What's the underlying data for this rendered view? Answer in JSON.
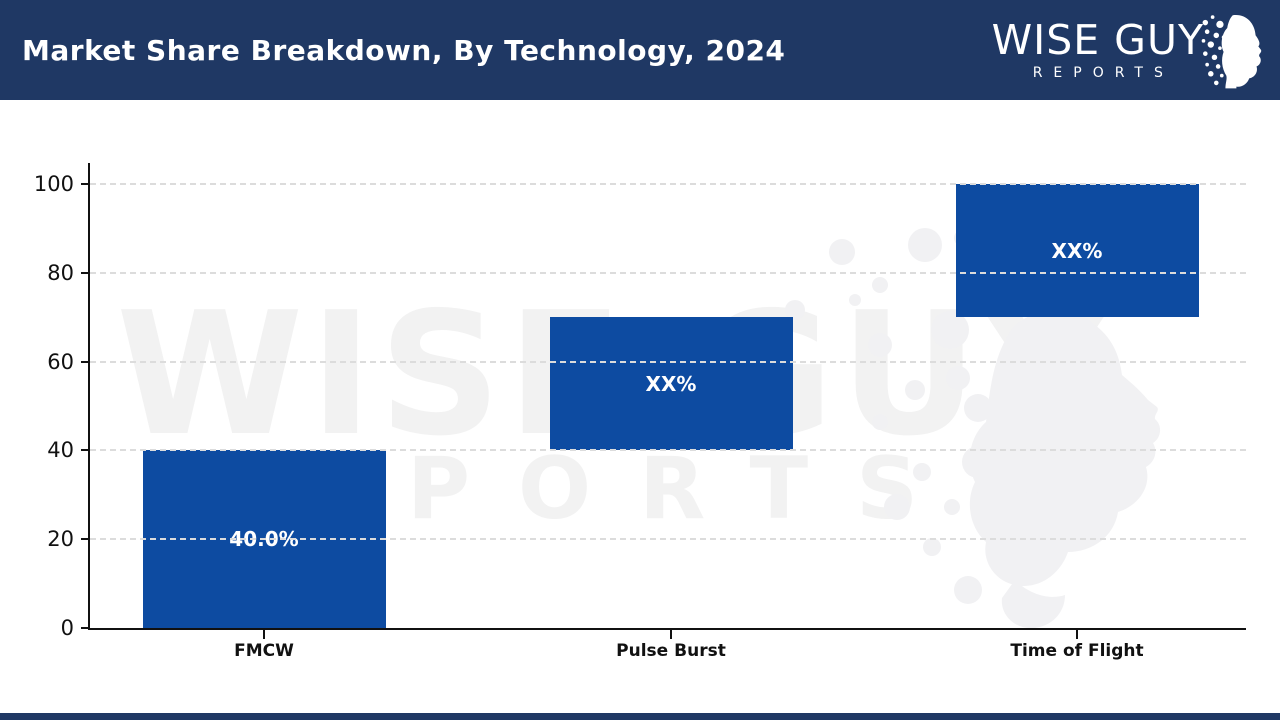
{
  "header": {
    "title": "Market Share Breakdown, By Technology, 2024",
    "logo": {
      "line1": "WISE GUY",
      "line2": "REPORTS"
    }
  },
  "watermark": {
    "line1": "WISE GUY",
    "line2": "REPORTS"
  },
  "colors": {
    "header_bg": "#1F3864",
    "footer_bg": "#1F3864",
    "bar": "#0D4BA1",
    "bar_label": "#FFFFFF",
    "grid": "#DCDCDC",
    "axis": "#111111",
    "watermark": "#F2F2F2"
  },
  "chart_data": {
    "type": "bar",
    "subtype": "waterfall-floating-bars",
    "title": "Market Share Breakdown, By Technology, 2024",
    "categories": [
      "FMCW",
      "Pulse Burst",
      "Time of Flight"
    ],
    "segments": [
      {
        "category": "FMCW",
        "start": 0,
        "end": 40,
        "label": "40.0%"
      },
      {
        "category": "Pulse Burst",
        "start": 40,
        "end": 70,
        "label": "XX%"
      },
      {
        "category": "Time of Flight",
        "start": 70,
        "end": 100,
        "label": "XX%"
      }
    ],
    "yticks": [
      0,
      20,
      40,
      60,
      80,
      100
    ],
    "ylim": [
      0,
      104
    ],
    "xlabel": "",
    "ylabel": "",
    "grid": "horizontal dashed, drawn above bars",
    "legend": "none",
    "bar_label_values_masked": "XX%"
  }
}
